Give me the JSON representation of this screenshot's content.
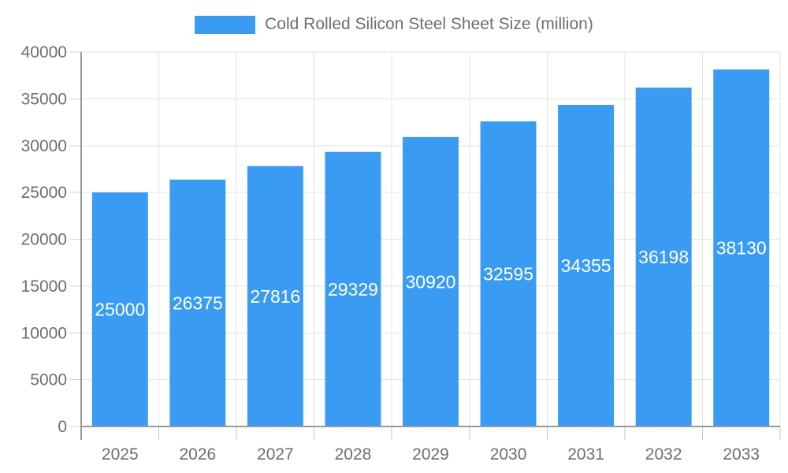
{
  "chart_data": {
    "type": "bar",
    "title": "Cold Rolled Silicon Steel Sheet Size (million)",
    "legend": [
      "Cold Rolled Silicon Steel Sheet Size (million)"
    ],
    "legend_position": "top-center",
    "categories": [
      "2025",
      "2026",
      "2027",
      "2028",
      "2029",
      "2030",
      "2031",
      "2032",
      "2033"
    ],
    "values": [
      25000,
      26375,
      27816,
      29329,
      30920,
      32595,
      34355,
      36198,
      38130
    ],
    "xlabel": "",
    "ylabel": "",
    "ylim": [
      0,
      40000
    ],
    "ytick_step": 5000,
    "yticks": [
      0,
      5000,
      10000,
      15000,
      20000,
      25000,
      30000,
      35000,
      40000
    ],
    "grid": true,
    "bar_labels_inside": true,
    "colors": {
      "bar": "#3a9bf2",
      "bar_label": "#ffffff",
      "axis_line": "#999999",
      "grid_line": "#e3e3e3",
      "y_tick": "#d4d4d4",
      "x_tick": "#c4c4c4",
      "axis_text": "#6e6e6e"
    }
  }
}
